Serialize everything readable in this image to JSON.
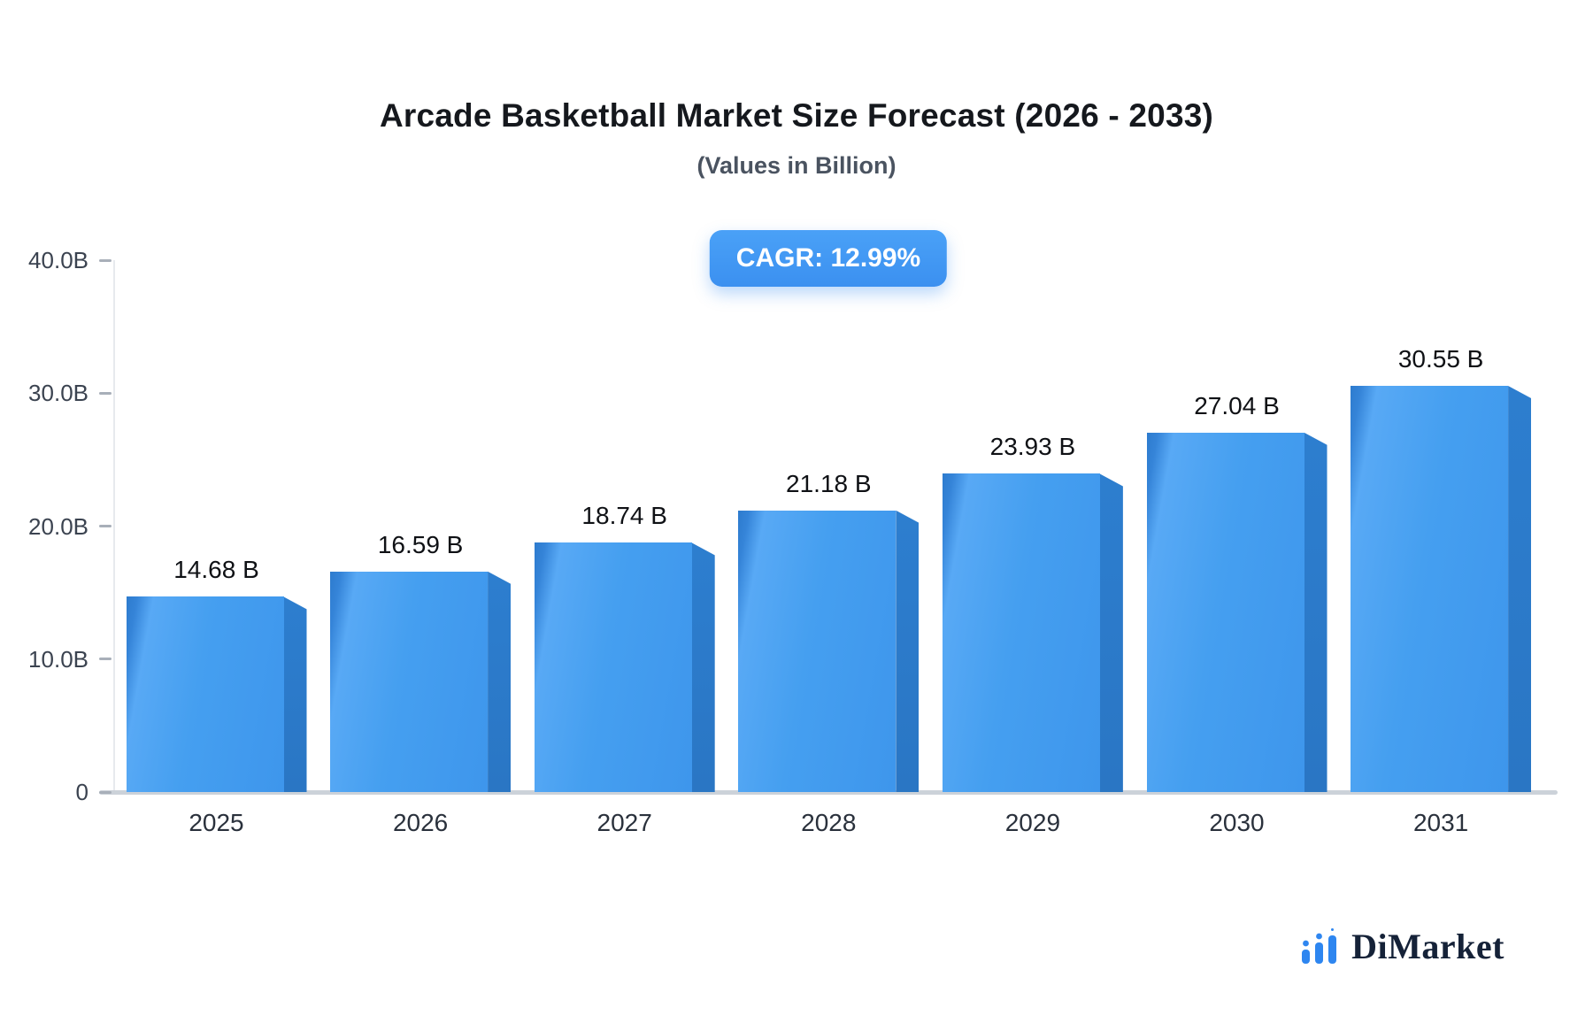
{
  "title": "Arcade Basketball Market Size Forecast (2026 - 2033)",
  "subtitle": "(Values in Billion)",
  "badge": {
    "label": "CAGR: 12.99%",
    "bg_color": "#3b90f0",
    "text_color": "#ffffff"
  },
  "chart_data": {
    "type": "bar",
    "title": "Arcade Basketball Market Size Forecast (2026 - 2033)",
    "subtitle": "(Values in Billion)",
    "categories": [
      "2025",
      "2026",
      "2027",
      "2028",
      "2029",
      "2030",
      "2031"
    ],
    "values": [
      14.68,
      16.59,
      18.74,
      21.18,
      23.93,
      27.04,
      30.55
    ],
    "value_labels": [
      "14.68 B",
      "16.59 B",
      "18.74 B",
      "21.18 B",
      "23.93 B",
      "27.04 B",
      "30.55 B"
    ],
    "xlabel": "",
    "ylabel": "",
    "ylim": [
      0,
      40
    ],
    "yticks": [
      {
        "value": 0,
        "label": "0"
      },
      {
        "value": 10,
        "label": "10.0B"
      },
      {
        "value": 20,
        "label": "20.0B"
      },
      {
        "value": 30,
        "label": "30.0B"
      },
      {
        "value": 40,
        "label": "40.0B"
      }
    ],
    "grid": false,
    "legend_position": "none",
    "bar_color": "#42a0f0",
    "bar_side_color": "#2d7ecf"
  },
  "logo": {
    "text": "DiMarket",
    "icon": "bar-chart-icon",
    "accent_color": "#2e86f0"
  }
}
